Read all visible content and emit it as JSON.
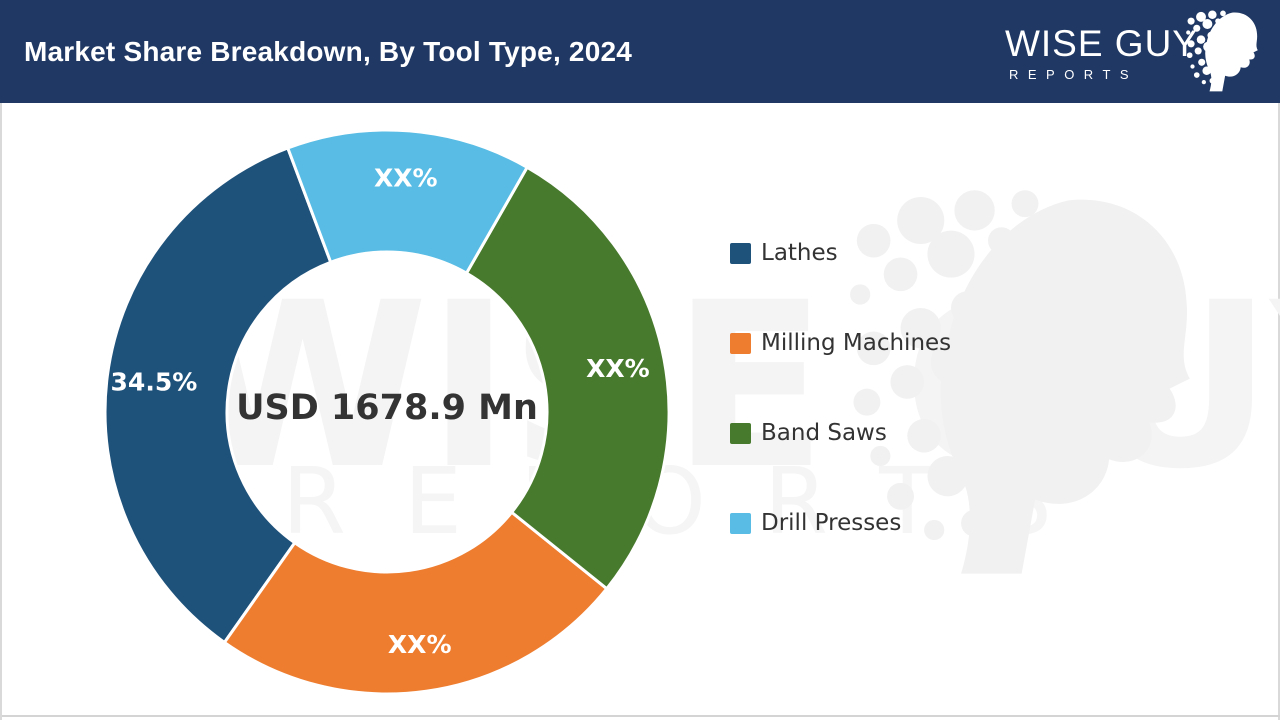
{
  "header": {
    "title": "Market Share Breakdown, By Tool Type, 2024",
    "logo": {
      "line1": "WISE GUY",
      "line2": "REPORTS"
    },
    "bg_color": "#1f3864"
  },
  "watermark": {
    "line1": "WISE GUY",
    "line2": "REPORTS"
  },
  "chart_data": {
    "type": "pie",
    "subtype": "donut",
    "title": "Market Share Breakdown, By Tool Type, 2024",
    "center_label": "USD 1678.9 Mn",
    "start_angle_deg": 110.6,
    "direction": "counterclockwise",
    "legend_position": "right",
    "inner_radius_ratio": 0.567,
    "segments": [
      {
        "name": "Lathes",
        "value": 34.5,
        "display_label": "34.5%",
        "color": "#1f527b"
      },
      {
        "name": "Milling Machines",
        "value": 24.0,
        "display_label": "XX%",
        "color": "#ee7d30"
      },
      {
        "name": "Band Saws",
        "value": 27.5,
        "display_label": "XX%",
        "color": "#487a2d"
      },
      {
        "name": "Drill Presses",
        "value": 14.0,
        "display_label": "XX%",
        "color": "#58bce4"
      }
    ]
  }
}
